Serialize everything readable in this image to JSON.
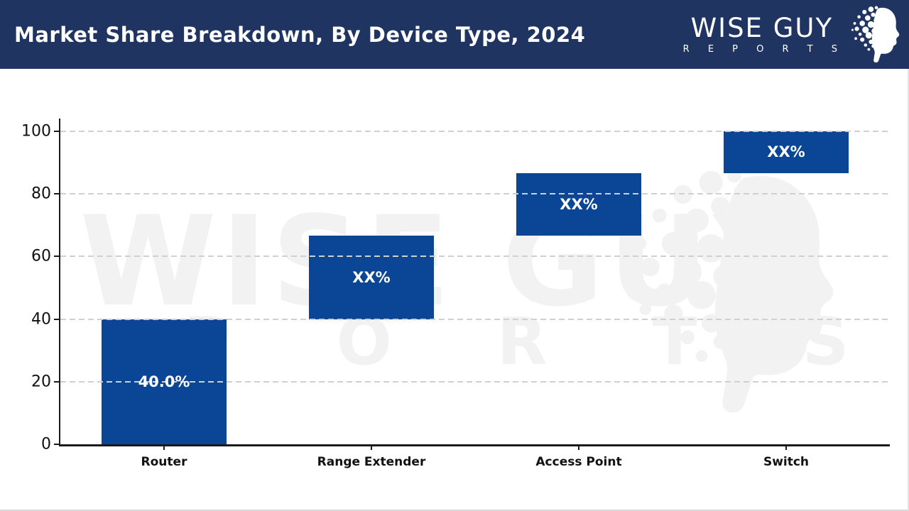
{
  "header": {
    "title": "Market Share Breakdown, By Device Type, 2024",
    "logo": {
      "name": "WISE GUY",
      "subtitle": "R E P O R T S"
    }
  },
  "watermark": {
    "line1": "WISE GUY",
    "line2": "P O R T S"
  },
  "chart_data": {
    "type": "bar",
    "subtype": "waterfall",
    "title": "Market Share Breakdown, By Device Type, 2024",
    "categories": [
      "Router",
      "Range Extender",
      "Access Point",
      "Switch"
    ],
    "segments": [
      {
        "category": "Router",
        "start": 0,
        "end": 40,
        "label": "40.0%"
      },
      {
        "category": "Range Extender",
        "start": 40,
        "end": 66.6,
        "label": "XX%"
      },
      {
        "category": "Access Point",
        "start": 66.6,
        "end": 86.7,
        "label": "XX%"
      },
      {
        "category": "Switch",
        "start": 86.7,
        "end": 100,
        "label": "XX%"
      }
    ],
    "xlabel": "",
    "ylabel": "",
    "ylim": [
      0,
      100
    ],
    "yticks": [
      0,
      20,
      40,
      60,
      80,
      100
    ],
    "grid": "horizontal-dashed",
    "grid_above_bars": true,
    "legend": "none",
    "bar_label_color": "#ffffff"
  },
  "colors": {
    "header_bg": "#1f3460",
    "page_bg": "#ffffff",
    "bar": "#0a4596",
    "axis": "#1a1a1a",
    "gridline": "#d0d0d0",
    "watermark": "#f2f2f2",
    "tick_label": "#111111"
  }
}
